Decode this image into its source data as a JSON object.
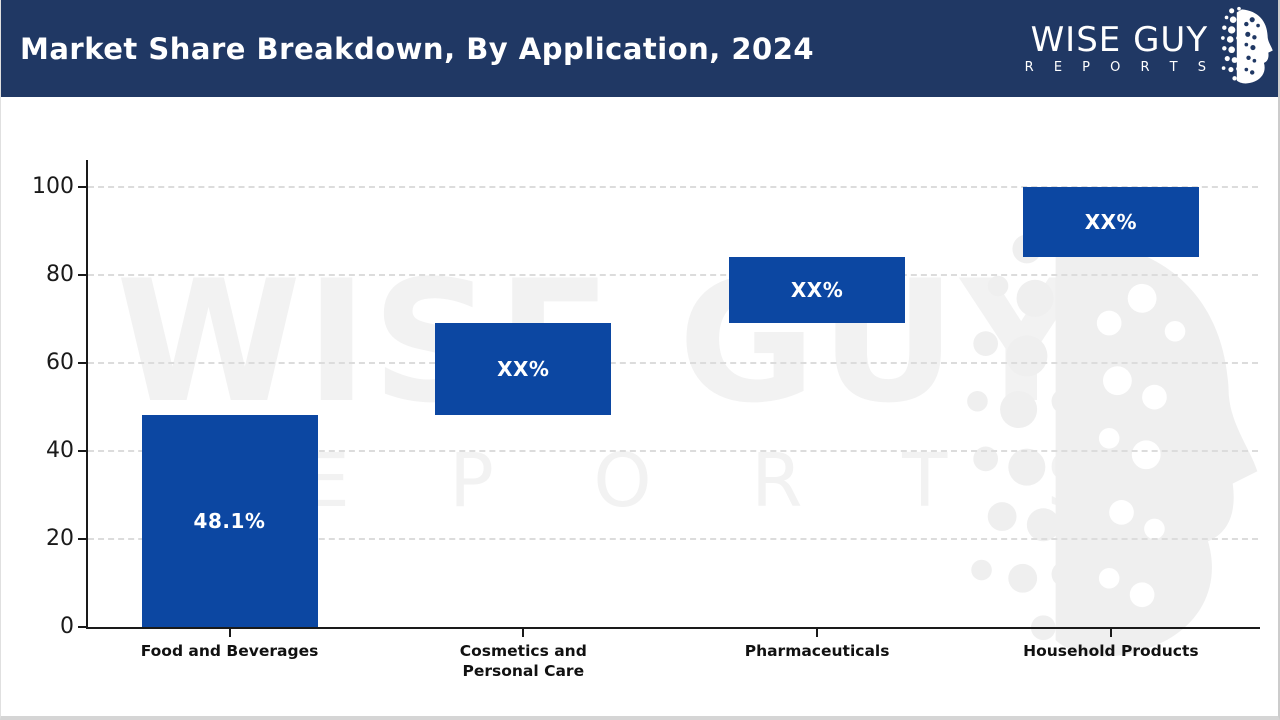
{
  "header": {
    "title": "Market Share Breakdown, By Application, 2024",
    "bg_color": "#203864",
    "logo": {
      "line1": "WISE GUY",
      "line2": "R E P O R T S"
    }
  },
  "watermark": {
    "line1": "WISE GUY",
    "line2": "R E P O R T S"
  },
  "chart_data": {
    "type": "bar",
    "subtype": "waterfall",
    "title": "Market Share Breakdown, By Application, 2024",
    "categories": [
      "Food and Beverages",
      "Cosmetics and Personal Care",
      "Pharmaceuticals",
      "Household Products"
    ],
    "bars": [
      {
        "category": "Food and Beverages",
        "category_lines": [
          "Food and Beverages"
        ],
        "start": 0,
        "end": 48.1,
        "label": "48.1%"
      },
      {
        "category": "Cosmetics and Personal Care",
        "category_lines": [
          "Cosmetics and",
          "Personal Care"
        ],
        "start": 48.1,
        "end": 69.2,
        "label": "XX%"
      },
      {
        "category": "Pharmaceuticals",
        "category_lines": [
          "Pharmaceuticals"
        ],
        "start": 69.2,
        "end": 84.1,
        "label": "XX%"
      },
      {
        "category": "Household Products",
        "category_lines": [
          "Household Products"
        ],
        "start": 84.1,
        "end": 100,
        "label": "XX%"
      }
    ],
    "xlabel": "",
    "ylabel": "",
    "ylim": [
      0,
      100
    ],
    "yticks": [
      0,
      20,
      40,
      60,
      80,
      100
    ],
    "grid": "horizontal-dashed",
    "legend": "none",
    "bar_color": "#0c47a2",
    "axis_color": "#1a1a1a",
    "grid_color": "#dcdcdc",
    "label_color": "#ffffff"
  }
}
